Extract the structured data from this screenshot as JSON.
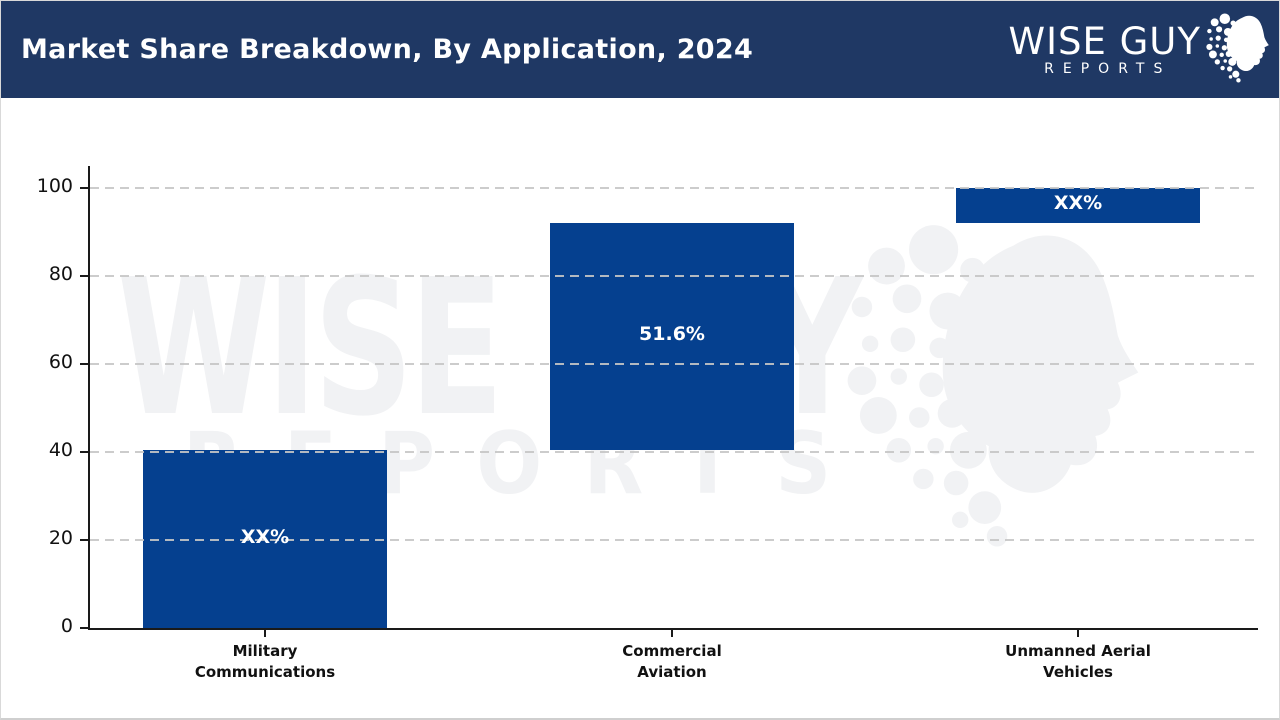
{
  "header": {
    "title": "Market Share Breakdown, By Application, 2024",
    "logo": {
      "line1": "WISE GUY",
      "line2": "REPORTS"
    }
  },
  "watermark": {
    "line1": "WISE GUY",
    "line2": "REPORTS"
  },
  "colors": {
    "header_bg": "#1f3864",
    "bar": "#05408f",
    "value_label": "#ffffff",
    "grid": "#c6c6c6",
    "axis": "#1a1a1a",
    "watermark": "#f1f2f4"
  },
  "chart_data": {
    "type": "bar",
    "variant": "waterfall",
    "title": "Market Share Breakdown, By Application, 2024",
    "categories": [
      "Military Communications",
      "Commercial Aviation",
      "Unmanned Aerial Vehicles"
    ],
    "category_label_lines": [
      [
        "Military",
        "Communications"
      ],
      [
        "Commercial",
        "Aviation"
      ],
      [
        "Unmanned Aerial",
        "Vehicles"
      ]
    ],
    "segments": [
      {
        "category": "Military Communications",
        "start": 0,
        "end": 40.5,
        "value_label": "XX%"
      },
      {
        "category": "Commercial Aviation",
        "start": 40.5,
        "end": 92.1,
        "value_label": "51.6%"
      },
      {
        "category": "Unmanned Aerial Vehicles",
        "start": 92.1,
        "end": 100,
        "value_label": "XX%"
      }
    ],
    "xlabel": "",
    "ylabel": "",
    "ylim": [
      0,
      100
    ],
    "yticks": [
      0,
      20,
      40,
      60,
      80,
      100
    ],
    "grid": {
      "axis": "y",
      "style": "dashed"
    },
    "legend": "none"
  }
}
